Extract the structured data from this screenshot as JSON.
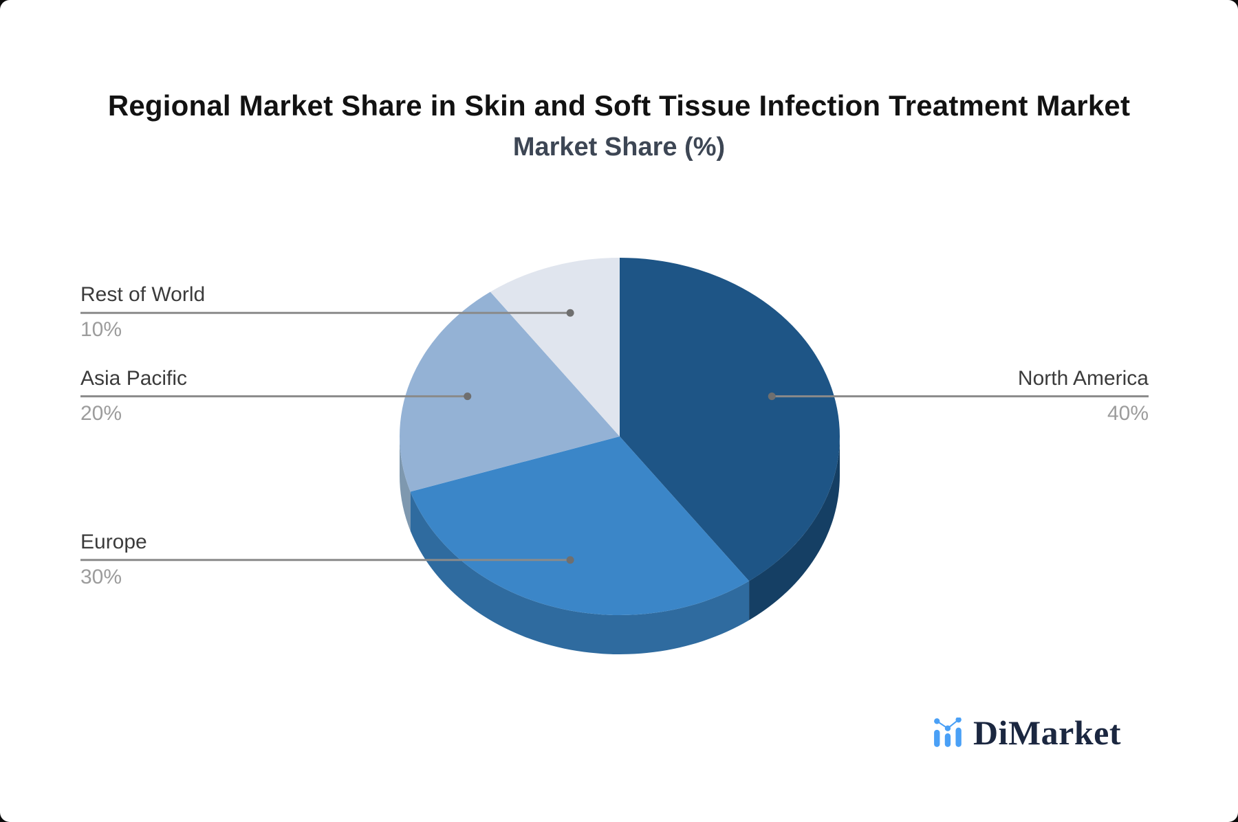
{
  "header": {
    "title": "Regional Market Share in Skin and Soft Tissue Infection Treatment Market",
    "subtitle": "Market Share (%)"
  },
  "chart_data": {
    "type": "pie",
    "style": "3d-pie",
    "title": "Regional Market Share in Skin and Soft Tissue Infection Treatment Market",
    "subtitle": "Market Share (%)",
    "unit": "%",
    "direction": "clockwise",
    "start_angle_deg": 0,
    "legend_position": "callout-labels",
    "slices": [
      {
        "label": "North America",
        "value": 40,
        "pct_label": "40%",
        "color": "#1e5586",
        "side_color": "#153f64",
        "label_side": "right"
      },
      {
        "label": "Europe",
        "value": 30,
        "pct_label": "30%",
        "color": "#3b86c8",
        "side_color": "#2f6b9f",
        "label_side": "left"
      },
      {
        "label": "Asia Pacific",
        "value": 20,
        "pct_label": "20%",
        "color": "#94b2d5",
        "side_color": "#7e98af",
        "label_side": "left"
      },
      {
        "label": "Rest of World",
        "value": 10,
        "pct_label": "10%",
        "color": "#e0e5ee",
        "side_color": "#c7d0dd",
        "label_side": "left"
      }
    ]
  },
  "branding": {
    "logo_text": "DiMarket"
  },
  "colors": {
    "leader_line": "#8a8a8a",
    "leader_dot": "#6f6f6f",
    "label_text": "#3b3b3b",
    "pct_text": "#9c9c9c",
    "title": "#121212",
    "subtitle": "#3d4654",
    "logo_text": "#1b2740",
    "logo_accent": "#4aa0f6"
  }
}
